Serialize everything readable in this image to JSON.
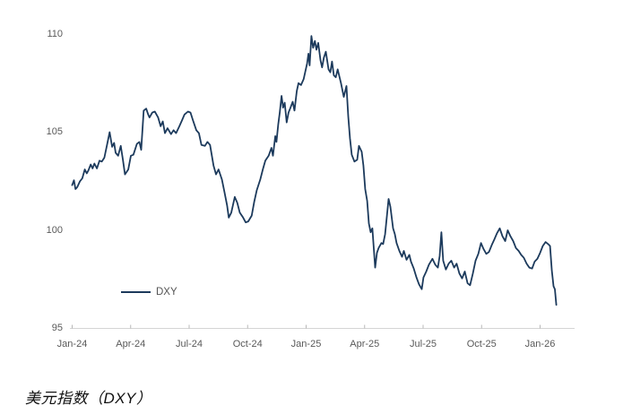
{
  "caption": "美元指数（DXY）",
  "legend": {
    "label": "DXY"
  },
  "colors": {
    "line": "#1c3a5c",
    "axis_line": "#d4d4d4",
    "tick_mark": "#b8b8b8",
    "axis_text": "#595959",
    "caption_text": "#111111",
    "background": "#ffffff"
  },
  "chart_data": {
    "type": "line",
    "title": "",
    "series_name": "DXY",
    "legend_position": "bottom-left-inside",
    "grid": false,
    "ylim": [
      95,
      110
    ],
    "y_ticks": [
      110,
      105,
      100,
      95
    ],
    "x_unit": "months_since_Jan-2024",
    "x_ticks": [
      {
        "label": "Jan-24",
        "m": 0
      },
      {
        "label": "Apr-24",
        "m": 3
      },
      {
        "label": "Jul-24",
        "m": 6
      },
      {
        "label": "Oct-24",
        "m": 9
      },
      {
        "label": "Jan-25",
        "m": 12
      },
      {
        "label": "Apr-25",
        "m": 15
      },
      {
        "label": "Jul-25",
        "m": 18
      },
      {
        "label": "Oct-25",
        "m": 21
      },
      {
        "label": "Jan-26",
        "m": 24
      }
    ],
    "points": [
      [
        0.0,
        102.3
      ],
      [
        0.09,
        102.55
      ],
      [
        0.17,
        102.1
      ],
      [
        0.26,
        102.2
      ],
      [
        0.4,
        102.5
      ],
      [
        0.52,
        102.65
      ],
      [
        0.65,
        103.1
      ],
      [
        0.75,
        102.9
      ],
      [
        0.83,
        103.05
      ],
      [
        0.95,
        103.35
      ],
      [
        1.05,
        103.15
      ],
      [
        1.14,
        103.4
      ],
      [
        1.27,
        103.15
      ],
      [
        1.4,
        103.55
      ],
      [
        1.52,
        103.5
      ],
      [
        1.65,
        103.7
      ],
      [
        1.79,
        104.35
      ],
      [
        1.92,
        105.0
      ],
      [
        2.05,
        104.25
      ],
      [
        2.15,
        104.45
      ],
      [
        2.23,
        103.95
      ],
      [
        2.36,
        103.8
      ],
      [
        2.49,
        104.3
      ],
      [
        2.6,
        103.6
      ],
      [
        2.71,
        102.85
      ],
      [
        2.88,
        103.1
      ],
      [
        3.01,
        103.8
      ],
      [
        3.14,
        103.85
      ],
      [
        3.32,
        104.4
      ],
      [
        3.45,
        104.5
      ],
      [
        3.54,
        104.1
      ],
      [
        3.67,
        106.1
      ],
      [
        3.8,
        106.2
      ],
      [
        3.9,
        105.9
      ],
      [
        3.97,
        105.75
      ],
      [
        4.11,
        106.0
      ],
      [
        4.24,
        106.05
      ],
      [
        4.41,
        105.75
      ],
      [
        4.54,
        105.3
      ],
      [
        4.65,
        105.55
      ],
      [
        4.76,
        104.95
      ],
      [
        4.89,
        105.2
      ],
      [
        5.07,
        104.9
      ],
      [
        5.2,
        105.1
      ],
      [
        5.33,
        104.95
      ],
      [
        5.5,
        105.3
      ],
      [
        5.63,
        105.6
      ],
      [
        5.76,
        105.9
      ],
      [
        5.94,
        106.05
      ],
      [
        6.07,
        106.0
      ],
      [
        6.2,
        105.6
      ],
      [
        6.37,
        105.1
      ],
      [
        6.5,
        104.95
      ],
      [
        6.63,
        104.35
      ],
      [
        6.81,
        104.3
      ],
      [
        6.94,
        104.5
      ],
      [
        7.07,
        104.35
      ],
      [
        7.25,
        103.3
      ],
      [
        7.38,
        102.85
      ],
      [
        7.51,
        103.1
      ],
      [
        7.68,
        102.6
      ],
      [
        7.81,
        101.95
      ],
      [
        7.95,
        101.25
      ],
      [
        8.03,
        100.65
      ],
      [
        8.16,
        100.9
      ],
      [
        8.34,
        101.7
      ],
      [
        8.47,
        101.4
      ],
      [
        8.6,
        100.9
      ],
      [
        8.77,
        100.65
      ],
      [
        8.9,
        100.4
      ],
      [
        9.03,
        100.45
      ],
      [
        9.21,
        100.75
      ],
      [
        9.34,
        101.45
      ],
      [
        9.47,
        102.05
      ],
      [
        9.65,
        102.6
      ],
      [
        9.78,
        103.1
      ],
      [
        9.91,
        103.55
      ],
      [
        10.08,
        103.8
      ],
      [
        10.22,
        104.2
      ],
      [
        10.3,
        103.8
      ],
      [
        10.42,
        104.8
      ],
      [
        10.48,
        104.5
      ],
      [
        10.57,
        105.4
      ],
      [
        10.65,
        106.0
      ],
      [
        10.74,
        106.85
      ],
      [
        10.82,
        106.25
      ],
      [
        10.9,
        106.5
      ],
      [
        11.0,
        105.5
      ],
      [
        11.1,
        106.0
      ],
      [
        11.2,
        106.25
      ],
      [
        11.31,
        106.55
      ],
      [
        11.4,
        106.1
      ],
      [
        11.52,
        107.1
      ],
      [
        11.61,
        107.5
      ],
      [
        11.74,
        107.4
      ],
      [
        11.87,
        107.7
      ],
      [
        12.05,
        108.5
      ],
      [
        12.12,
        109.0
      ],
      [
        12.18,
        108.4
      ],
      [
        12.27,
        109.9
      ],
      [
        12.36,
        109.3
      ],
      [
        12.45,
        109.65
      ],
      [
        12.53,
        109.2
      ],
      [
        12.62,
        109.55
      ],
      [
        12.74,
        108.65
      ],
      [
        12.82,
        108.3
      ],
      [
        12.91,
        108.8
      ],
      [
        13.01,
        109.1
      ],
      [
        13.15,
        108.2
      ],
      [
        13.24,
        108.05
      ],
      [
        13.33,
        108.6
      ],
      [
        13.42,
        107.9
      ],
      [
        13.52,
        107.8
      ],
      [
        13.62,
        108.2
      ],
      [
        13.79,
        107.5
      ],
      [
        13.93,
        106.8
      ],
      [
        14.07,
        107.35
      ],
      [
        14.16,
        105.8
      ],
      [
        14.25,
        104.7
      ],
      [
        14.34,
        103.85
      ],
      [
        14.48,
        103.5
      ],
      [
        14.62,
        103.6
      ],
      [
        14.71,
        104.3
      ],
      [
        14.85,
        104.0
      ],
      [
        14.94,
        103.3
      ],
      [
        15.03,
        102.1
      ],
      [
        15.13,
        101.5
      ],
      [
        15.22,
        100.35
      ],
      [
        15.31,
        99.9
      ],
      [
        15.4,
        100.1
      ],
      [
        15.54,
        98.1
      ],
      [
        15.63,
        98.85
      ],
      [
        15.72,
        99.1
      ],
      [
        15.86,
        99.35
      ],
      [
        15.95,
        99.3
      ],
      [
        16.05,
        99.8
      ],
      [
        16.23,
        101.6
      ],
      [
        16.32,
        101.2
      ],
      [
        16.46,
        100.1
      ],
      [
        16.55,
        99.8
      ],
      [
        16.64,
        99.35
      ],
      [
        16.78,
        98.95
      ],
      [
        16.92,
        98.65
      ],
      [
        17.01,
        98.95
      ],
      [
        17.15,
        98.5
      ],
      [
        17.29,
        98.75
      ],
      [
        17.38,
        98.4
      ],
      [
        17.52,
        98.05
      ],
      [
        17.66,
        97.6
      ],
      [
        17.79,
        97.25
      ],
      [
        17.93,
        97.0
      ],
      [
        18.02,
        97.6
      ],
      [
        18.16,
        97.9
      ],
      [
        18.3,
        98.25
      ],
      [
        18.48,
        98.55
      ],
      [
        18.62,
        98.25
      ],
      [
        18.76,
        98.1
      ],
      [
        18.85,
        98.7
      ],
      [
        18.94,
        99.9
      ],
      [
        19.03,
        98.45
      ],
      [
        19.17,
        98.0
      ],
      [
        19.31,
        98.3
      ],
      [
        19.45,
        98.45
      ],
      [
        19.59,
        98.1
      ],
      [
        19.72,
        98.3
      ],
      [
        19.86,
        97.8
      ],
      [
        20.0,
        97.55
      ],
      [
        20.14,
        97.9
      ],
      [
        20.28,
        97.3
      ],
      [
        20.41,
        97.2
      ],
      [
        20.55,
        97.8
      ],
      [
        20.69,
        98.45
      ],
      [
        20.83,
        98.8
      ],
      [
        20.97,
        99.35
      ],
      [
        21.1,
        99.05
      ],
      [
        21.24,
        98.8
      ],
      [
        21.38,
        98.9
      ],
      [
        21.52,
        99.25
      ],
      [
        21.66,
        99.55
      ],
      [
        21.79,
        99.85
      ],
      [
        21.93,
        100.1
      ],
      [
        22.07,
        99.7
      ],
      [
        22.21,
        99.45
      ],
      [
        22.34,
        100.0
      ],
      [
        22.48,
        99.7
      ],
      [
        22.62,
        99.45
      ],
      [
        22.76,
        99.1
      ],
      [
        22.9,
        98.95
      ],
      [
        23.03,
        98.75
      ],
      [
        23.17,
        98.6
      ],
      [
        23.31,
        98.3
      ],
      [
        23.45,
        98.1
      ],
      [
        23.59,
        98.05
      ],
      [
        23.72,
        98.4
      ],
      [
        23.86,
        98.55
      ],
      [
        24.0,
        98.85
      ],
      [
        24.14,
        99.2
      ],
      [
        24.28,
        99.4
      ],
      [
        24.41,
        99.3
      ],
      [
        24.51,
        99.2
      ],
      [
        24.6,
        97.95
      ],
      [
        24.69,
        97.15
      ],
      [
        24.76,
        97.0
      ],
      [
        24.83,
        96.2
      ]
    ]
  }
}
